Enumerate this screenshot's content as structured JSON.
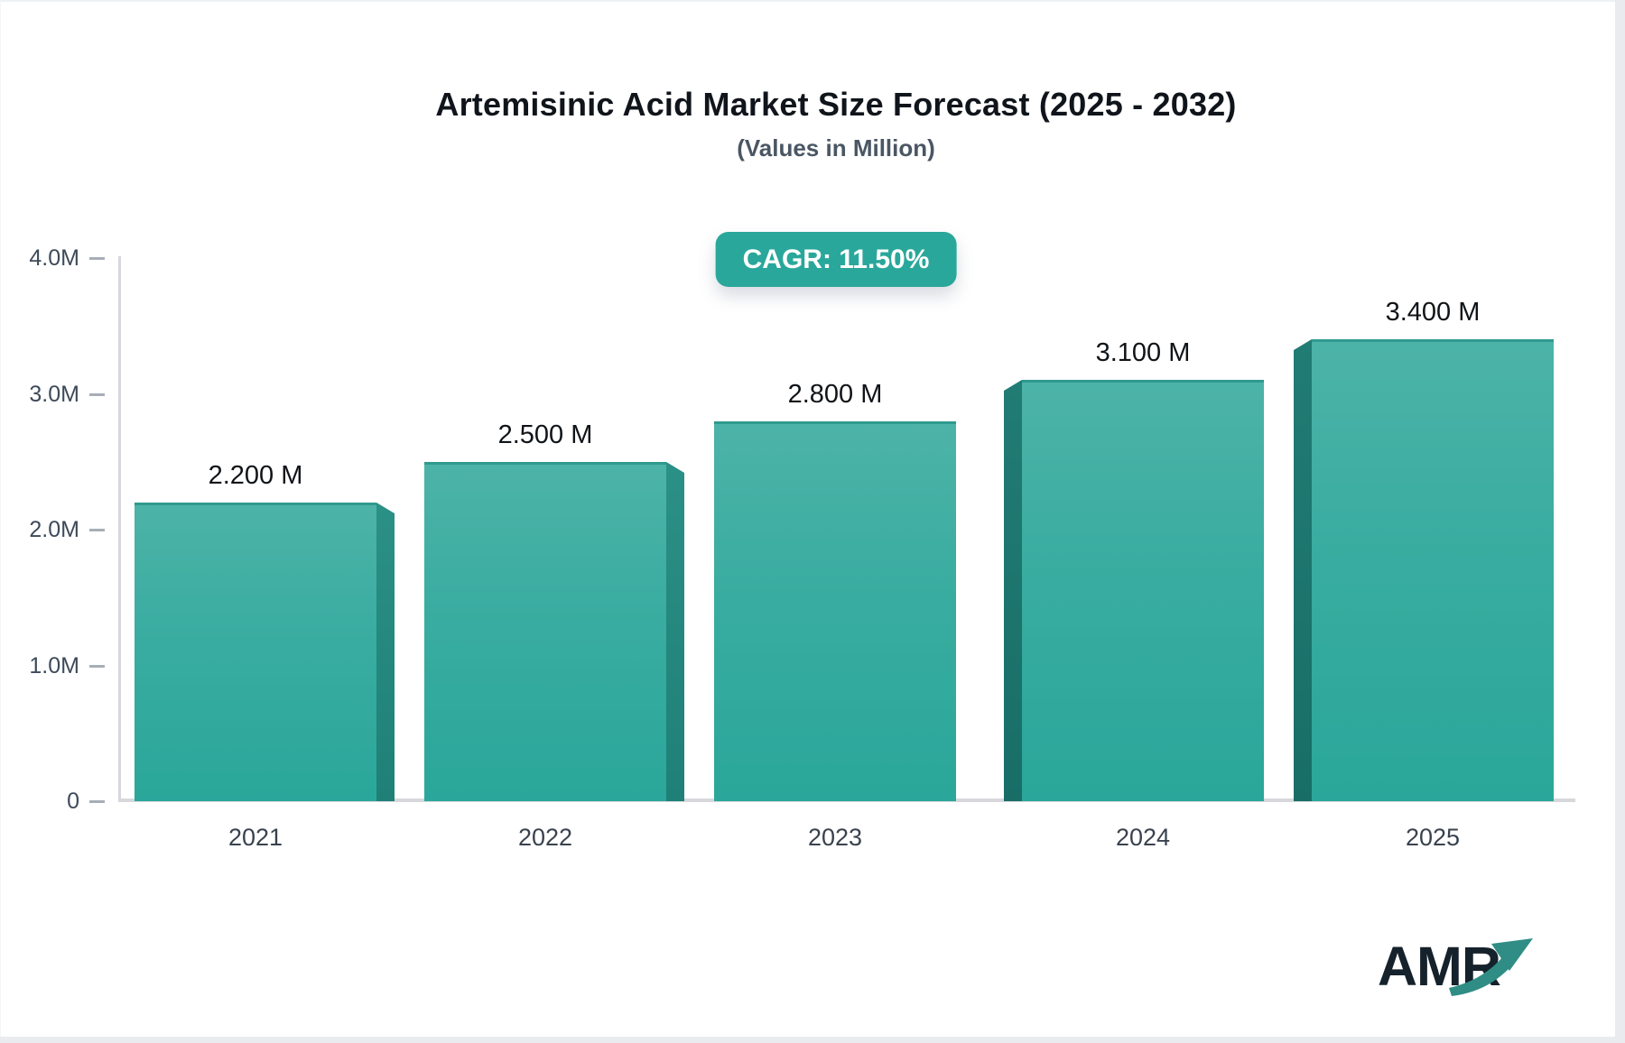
{
  "header": {
    "title": "Artemisinic Acid Market Size Forecast (2025 - 2032)",
    "subtitle": "(Values in Million)"
  },
  "badge": {
    "label": "CAGR: 11.50%"
  },
  "chart_data": {
    "type": "bar",
    "title": "Artemisinic Acid Market Size Forecast (2025 - 2032)",
    "subtitle": "(Values in Million)",
    "cagr_label": "CAGR: 11.50%",
    "categories": [
      "2021",
      "2022",
      "2023",
      "2024",
      "2025"
    ],
    "values": [
      2.2,
      2.5,
      2.8,
      3.1,
      3.4
    ],
    "bar_labels": [
      "2.200 M",
      "2.500 M",
      "2.800 M",
      "3.100 M",
      "3.400 M"
    ],
    "unit": "Million",
    "xlabel": "",
    "ylabel": "",
    "ylim": [
      0,
      4.0
    ],
    "yticks": [
      {
        "label": "4.0M",
        "value": 4.0
      },
      {
        "label": "3.0M",
        "value": 3.0
      },
      {
        "label": "2.0M",
        "value": 2.0
      },
      {
        "label": "1.0M",
        "value": 1.0
      },
      {
        "label": "0",
        "value": 0
      }
    ],
    "grid": false,
    "legend": false,
    "bar_3d_sides": [
      "right",
      "right",
      "none",
      "left",
      "left"
    ]
  },
  "logo": {
    "text": "AMR"
  },
  "colors": {
    "bar_face_top": "#4db3a8",
    "bar_face_bottom": "#2aa79a",
    "bar_flank_right": "#23887f",
    "bar_flank_left": "#1d756e",
    "badge_background": "#2aa79b",
    "badge_text": "#ffffff",
    "axis_line": "#d6d8dc",
    "tick_dash": "#a8aeb7",
    "axis_text": "#3e4a59",
    "title_text": "#10151b",
    "subtitle_text": "#4a5663",
    "logo_text": "#15212b",
    "logo_arrow": "#2f8d85"
  }
}
